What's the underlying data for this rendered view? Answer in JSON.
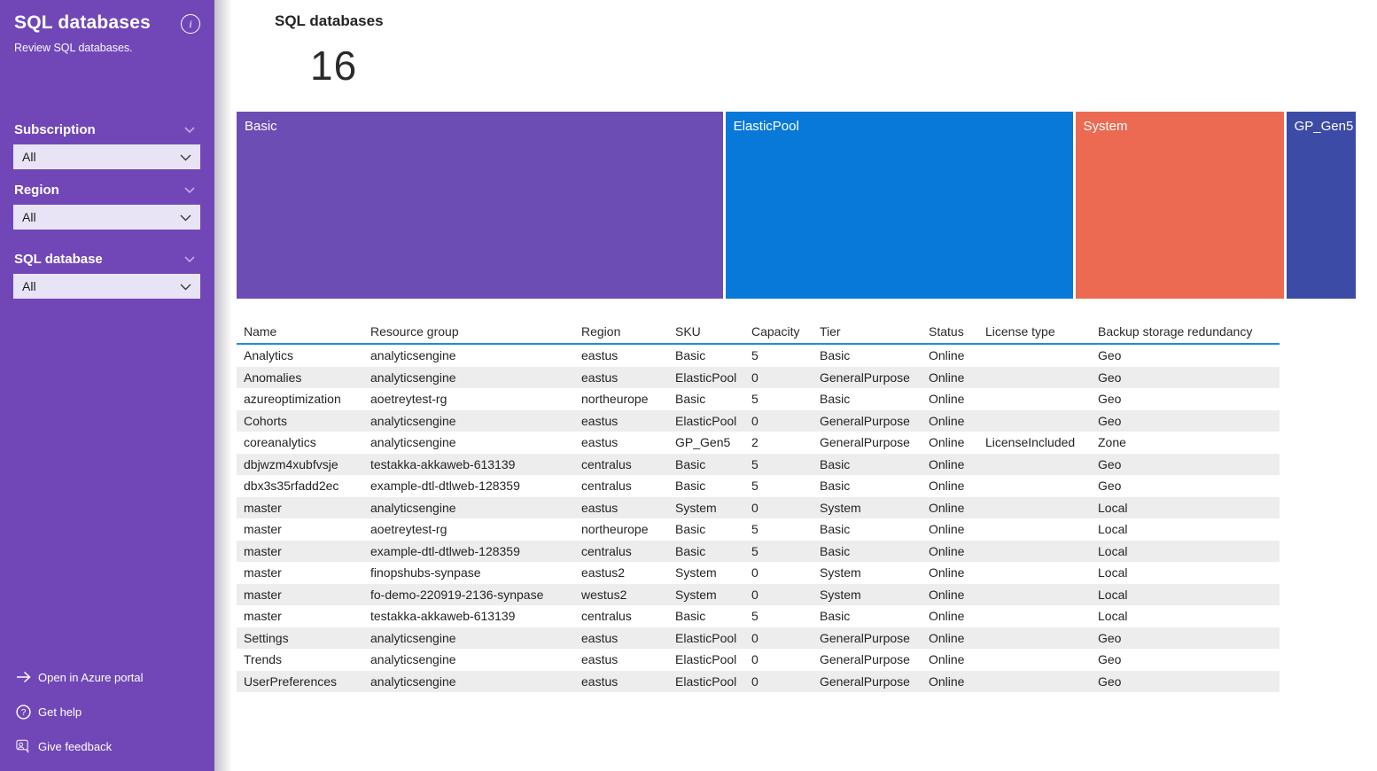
{
  "sidebar": {
    "title": "SQL databases",
    "subtitle": "Review SQL databases.",
    "filters": [
      {
        "label": "Subscription",
        "value": "All"
      },
      {
        "label": "Region",
        "value": "All"
      },
      {
        "label": "SQL database",
        "value": "All"
      }
    ],
    "links": [
      {
        "label": "Open in Azure portal",
        "icon": "arrow-right-icon"
      },
      {
        "label": "Get help",
        "icon": "help-circle-icon"
      },
      {
        "label": "Give feedback",
        "icon": "feedback-person-icon"
      }
    ]
  },
  "main": {
    "title": "SQL databases",
    "count": "16",
    "treemap": {
      "segments": [
        {
          "label": "Basic",
          "count": 7,
          "color": "#6C4DB3"
        },
        {
          "label": "ElasticPool",
          "count": 5,
          "color": "#0879D9"
        },
        {
          "label": "System",
          "count": 3,
          "color": "#EC6A52"
        },
        {
          "label": "GP_Gen5",
          "count": 1,
          "color": "#3C4CA6"
        }
      ]
    },
    "table": {
      "columns": [
        "Name",
        "Resource group",
        "Region",
        "SKU",
        "Capacity",
        "Tier",
        "Status",
        "License type",
        "Backup storage redundancy"
      ],
      "rows": [
        [
          "Analytics",
          "analyticsengine",
          "eastus",
          "Basic",
          "5",
          "Basic",
          "Online",
          "",
          "Geo"
        ],
        [
          "Anomalies",
          "analyticsengine",
          "eastus",
          "ElasticPool",
          "0",
          "GeneralPurpose",
          "Online",
          "",
          "Geo"
        ],
        [
          "azureoptimization",
          "aoetreytest-rg",
          "northeurope",
          "Basic",
          "5",
          "Basic",
          "Online",
          "",
          "Geo"
        ],
        [
          "Cohorts",
          "analyticsengine",
          "eastus",
          "ElasticPool",
          "0",
          "GeneralPurpose",
          "Online",
          "",
          "Geo"
        ],
        [
          "coreanalytics",
          "analyticsengine",
          "eastus",
          "GP_Gen5",
          "2",
          "GeneralPurpose",
          "Online",
          "LicenseIncluded",
          "Zone"
        ],
        [
          "dbjwzm4xubfvsje",
          "testakka-akkaweb-613139",
          "centralus",
          "Basic",
          "5",
          "Basic",
          "Online",
          "",
          "Geo"
        ],
        [
          "dbx3s35rfadd2ec",
          "example-dtl-dtlweb-128359",
          "centralus",
          "Basic",
          "5",
          "Basic",
          "Online",
          "",
          "Geo"
        ],
        [
          "master",
          "analyticsengine",
          "eastus",
          "System",
          "0",
          "System",
          "Online",
          "",
          "Local"
        ],
        [
          "master",
          "aoetreytest-rg",
          "northeurope",
          "Basic",
          "5",
          "Basic",
          "Online",
          "",
          "Local"
        ],
        [
          "master",
          "example-dtl-dtlweb-128359",
          "centralus",
          "Basic",
          "5",
          "Basic",
          "Online",
          "",
          "Local"
        ],
        [
          "master",
          "finopshubs-synpase",
          "eastus2",
          "System",
          "0",
          "System",
          "Online",
          "",
          "Local"
        ],
        [
          "master",
          "fo-demo-220919-2136-synpase",
          "westus2",
          "System",
          "0",
          "System",
          "Online",
          "",
          "Local"
        ],
        [
          "master",
          "testakka-akkaweb-613139",
          "centralus",
          "Basic",
          "5",
          "Basic",
          "Online",
          "",
          "Local"
        ],
        [
          "Settings",
          "analyticsengine",
          "eastus",
          "ElasticPool",
          "0",
          "GeneralPurpose",
          "Online",
          "",
          "Geo"
        ],
        [
          "Trends",
          "analyticsengine",
          "eastus",
          "ElasticPool",
          "0",
          "GeneralPurpose",
          "Online",
          "",
          "Geo"
        ],
        [
          "UserPreferences",
          "analyticsengine",
          "eastus",
          "ElasticPool",
          "0",
          "GeneralPurpose",
          "Online",
          "",
          "Geo"
        ]
      ]
    }
  },
  "chart_data": {
    "type": "treemap",
    "title": "SQL databases",
    "total": 16,
    "categories": [
      "Basic",
      "ElasticPool",
      "System",
      "GP_Gen5"
    ],
    "values": [
      7,
      5,
      3,
      1
    ],
    "colors": [
      "#6C4DB3",
      "#0879D9",
      "#EC6A52",
      "#3C4CA6"
    ]
  },
  "colors": {
    "sidebar_bg": "#7147B8",
    "dropdown_bg": "#E9E4F5",
    "header_underline": "#2389E4",
    "row_stripe": "#ededed",
    "text": "#252423"
  }
}
